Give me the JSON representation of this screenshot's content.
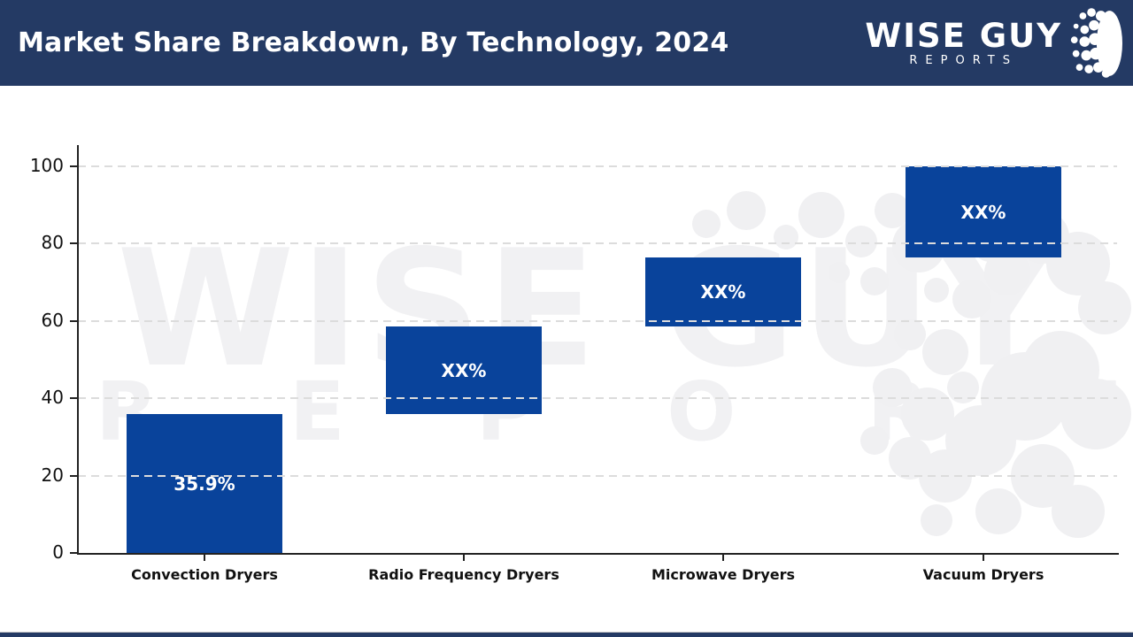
{
  "header": {
    "title": "Market Share Breakdown, By Technology, 2024",
    "bg_color": "#243a64",
    "logo": {
      "line1": "WISE GUY",
      "line2": "REPORTS"
    }
  },
  "watermark": {
    "line1": "WISE GUY",
    "line2": "R E P O R T S"
  },
  "chart_data": {
    "type": "bar",
    "subtype": "waterfall",
    "title": "Market Share Breakdown, By Technology, 2024",
    "categories": [
      "Convection Dryers",
      "Radio Frequency Dryers",
      "Microwave Dryers",
      "Vacuum Dryers"
    ],
    "segments": [
      {
        "category": "Convection Dryers",
        "start": 0,
        "end": 35.9,
        "label": "35.9%"
      },
      {
        "category": "Radio Frequency Dryers",
        "start": 35.9,
        "end": 58.5,
        "label": "XX%"
      },
      {
        "category": "Microwave Dryers",
        "start": 58.5,
        "end": 76.4,
        "label": "XX%"
      },
      {
        "category": "Vacuum Dryers",
        "start": 76.4,
        "end": 100,
        "label": "XX%"
      }
    ],
    "yticks": [
      0,
      20,
      40,
      60,
      80,
      100
    ],
    "ylim": [
      0,
      105
    ],
    "xlabel": "",
    "ylabel": "",
    "grid": true,
    "grid_style": "dashed",
    "legend": false,
    "bar_color": "#09439b",
    "grid_color": "#dcdcdc",
    "axis_color": "#222222"
  },
  "footer": {
    "bg_color": "#243a64"
  }
}
